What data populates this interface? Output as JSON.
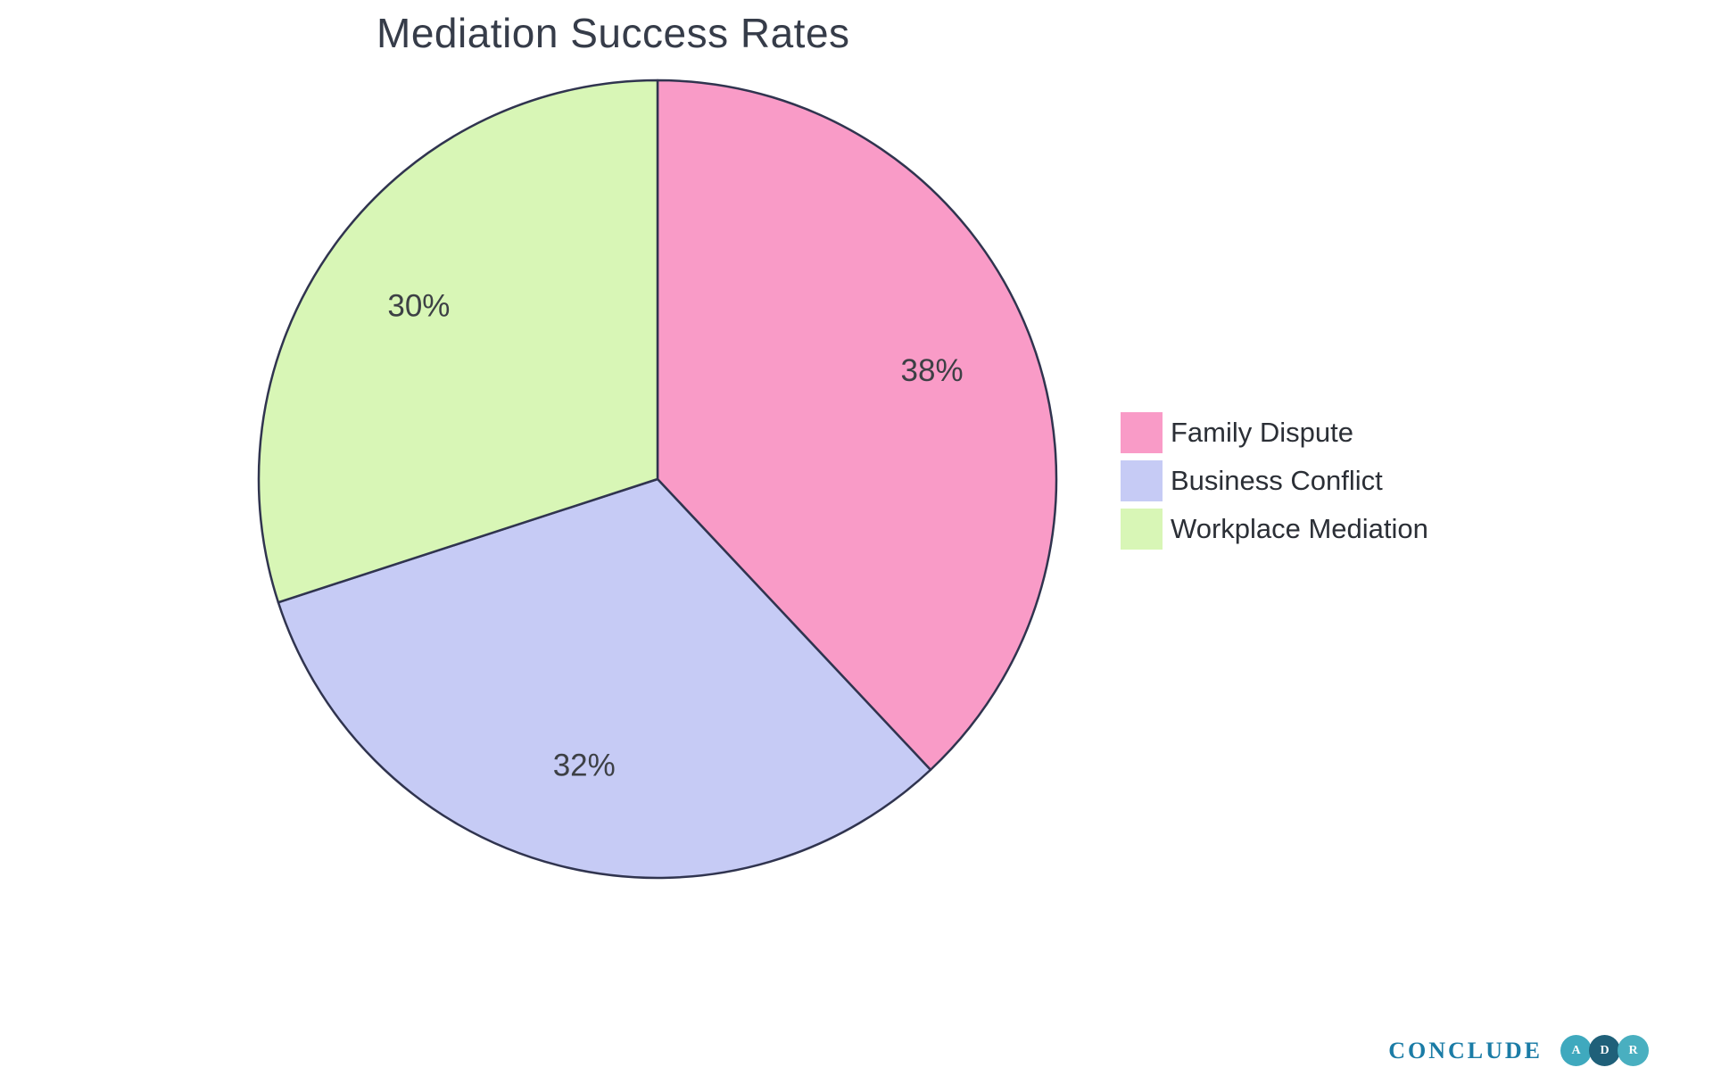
{
  "chart_data": {
    "type": "pie",
    "title": "Mediation Success Rates",
    "categories": [
      "Family Dispute",
      "Business Conflict",
      "Workplace Mediation"
    ],
    "values": [
      38,
      32,
      30
    ],
    "labels": [
      "38%",
      "32%",
      "30%"
    ],
    "colors": [
      "#F99BC7",
      "#C6CBF5",
      "#D8F6B6"
    ],
    "stroke_color": "#30344F",
    "start_angle_deg": -90,
    "direction": "clockwise",
    "legend_position": "right",
    "label_radius_fraction": 0.74
  },
  "legend": {
    "items": [
      {
        "label": "Family Dispute",
        "color": "#F99BC7"
      },
      {
        "label": "Business Conflict",
        "color": "#C6CBF5"
      },
      {
        "label": "Workplace Mediation",
        "color": "#D8F6B6"
      }
    ]
  },
  "watermark": {
    "brand": "CONCLUDE",
    "brand_color": "#1b7ca6",
    "badges": [
      {
        "letter": "A",
        "color": "#3FA9BE"
      },
      {
        "letter": "D",
        "color": "#1F6079"
      },
      {
        "letter": "R",
        "color": "#49AFC0"
      }
    ]
  }
}
